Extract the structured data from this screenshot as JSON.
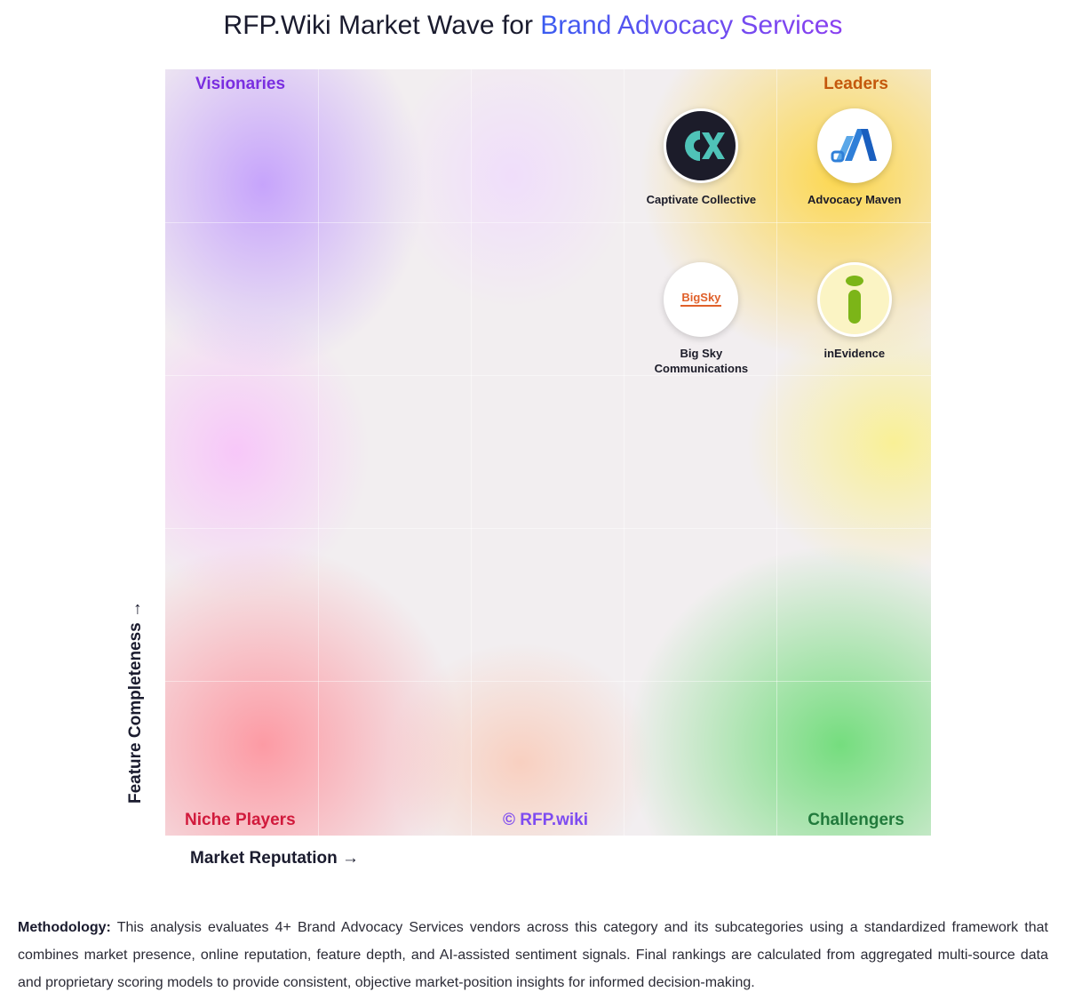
{
  "title": {
    "prefix": "RFP.Wiki Market Wave for ",
    "accent": "Brand Advocacy Services"
  },
  "chart_data": {
    "type": "scatter",
    "title": "RFP.Wiki Market Wave for Brand Advocacy Services",
    "xlabel": "Market Reputation →",
    "ylabel": "Feature Completeness →",
    "quadrants": {
      "top_left": "Visionaries",
      "top_right": "Leaders",
      "bottom_left": "Niche Players",
      "bottom_right": "Challengers"
    },
    "watermark": "© RFP.wiki",
    "xlim": [
      0,
      100
    ],
    "ylim": [
      0,
      100
    ],
    "grid": true,
    "points": [
      {
        "name": "Captivate Collective",
        "x": 70,
        "y": 90
      },
      {
        "name": "Advocacy Maven",
        "x": 90,
        "y": 90
      },
      {
        "name": "Big Sky Communications",
        "x": 70,
        "y": 70
      },
      {
        "name": "inEvidence",
        "x": 90,
        "y": 70
      }
    ]
  },
  "vendors": [
    {
      "name": "Captivate Collective",
      "name_lines": [
        "Captivate Collective"
      ],
      "icon": "captivate-collective-logo"
    },
    {
      "name": "Advocacy Maven",
      "name_lines": [
        "Advocacy Maven"
      ],
      "icon": "advocacy-maven-logo"
    },
    {
      "name": "Big Sky Communications",
      "name_lines": [
        "Big Sky",
        "Communications"
      ],
      "icon": "big-sky-logo",
      "logo_text": "BigSky"
    },
    {
      "name": "inEvidence",
      "name_lines": [
        "inEvidence"
      ],
      "icon": "inevidence-logo"
    }
  ],
  "methodology": {
    "label": "Methodology:",
    "text": " This analysis evaluates 4+ Brand Advocacy Services vendors across this category and its subcategories using a standardized framework that combines market presence, online reputation, feature depth, and AI-assisted sentiment signals. Final rankings are calculated from aggregated multi-source data and proprietary scoring models to provide consistent, objective market-position insights for informed decision-making."
  },
  "colors": {
    "visionaries": "#7a2ee0",
    "leaders": "#c4580c",
    "niche_players": "#d11a3c",
    "challengers": "#217a3c",
    "watermark": "#7e4cf0",
    "title_accent_start": "#3a5cf0",
    "title_accent_end": "#8a3ff0"
  }
}
